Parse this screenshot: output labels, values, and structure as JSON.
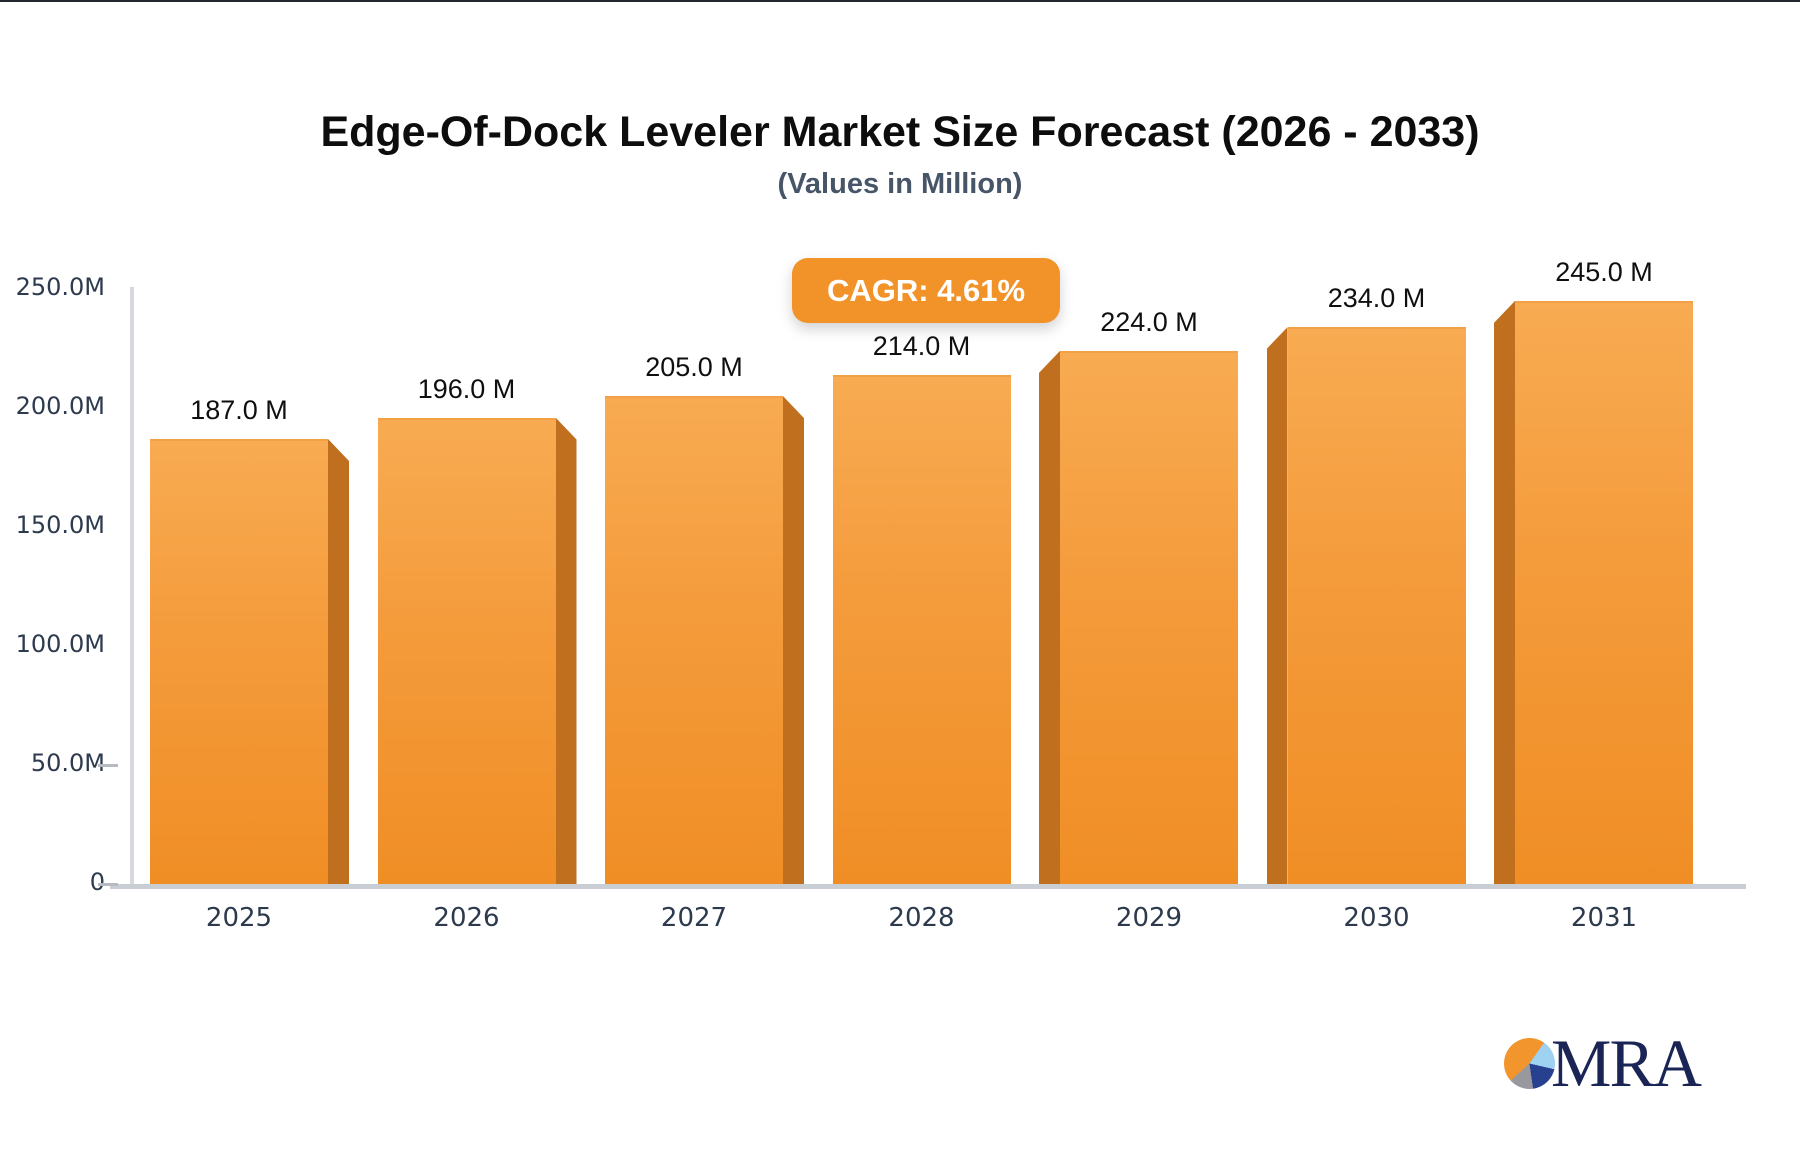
{
  "page": {
    "title": "Edge-Of-Dock Leveler Market Size Forecast (2026 - 2033)",
    "subtitle": "(Values in Million)"
  },
  "cagr_badge": "CAGR: 4.61%",
  "logo_text": "MRA",
  "chart_data": {
    "type": "bar",
    "title": "Edge-Of-Dock Leveler Market Size Forecast (2026 - 2033)",
    "subtitle": "(Values in Million)",
    "categories": [
      "2025",
      "2026",
      "2027",
      "2028",
      "2029",
      "2030",
      "2031"
    ],
    "values": [
      187.0,
      196.0,
      205.0,
      214.0,
      224.0,
      234.0,
      245.0
    ],
    "bar_labels": [
      "187.0 M",
      "196.0 M",
      "205.0 M",
      "214.0 M",
      "224.0 M",
      "234.0 M",
      "245.0 M"
    ],
    "annotation": "CAGR: 4.61%",
    "xlabel": "",
    "ylabel": "",
    "ylim": [
      0,
      250
    ],
    "y_tick_values": [
      250,
      200,
      150,
      100,
      50,
      0
    ],
    "y_tick_labels": [
      "250.0M",
      "200.0M",
      "150.0M",
      "100.0M",
      "50.0M",
      "0"
    ],
    "y_ticks_with_dash": [
      50,
      0
    ],
    "grid": false,
    "legend": "none",
    "depth_side": [
      "right",
      "right",
      "right",
      "none",
      "left",
      "left",
      "left"
    ],
    "colors": {
      "bar_top": "#f8ab52",
      "bar_mid": "#f49b3b",
      "bar_bottom": "#f08e25",
      "bar_side": "#bf6f1d",
      "badge_bg": "#f2932a",
      "badge_text": "#ffffff",
      "axis_text": "#2e3b4e",
      "axis_line": "#c9cdd4",
      "title_text": "#0d0d0d",
      "subtitle_text": "#475569",
      "logo_navy": "#1a2556",
      "logo_orange": "#f2952d",
      "logo_lightblue": "#9fd1f1",
      "logo_blue": "#27418f",
      "logo_gray": "#99989f"
    }
  }
}
